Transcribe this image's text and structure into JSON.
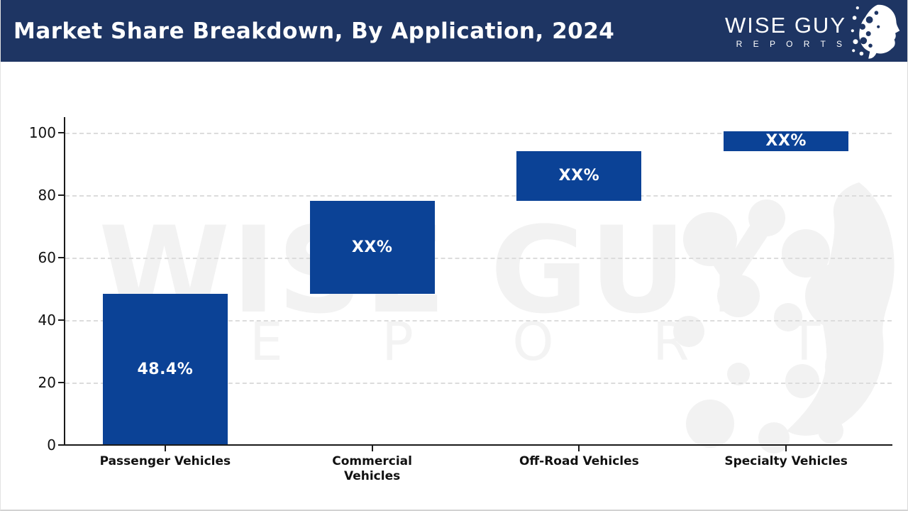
{
  "header": {
    "title": "Market Share Breakdown, By Application, 2024",
    "bg_color": "#1e3563",
    "logo": {
      "line1": "WISE GUY",
      "line2": "R E P O R T S"
    }
  },
  "watermark": {
    "line1": "WISE GUY",
    "line2": "R E P O R T S"
  },
  "chart_data": {
    "type": "bar",
    "subtype": "waterfall",
    "title": "Market Share Breakdown, By Application, 2024",
    "categories": [
      "Passenger Vehicles",
      "Commercial Vehicles",
      "Off-Road Vehicles",
      "Specialty Vehicles"
    ],
    "category_lines": [
      [
        "Passenger Vehicles"
      ],
      [
        "Commercial",
        "Vehicles"
      ],
      [
        "Off-Road Vehicles"
      ],
      [
        "Specialty Vehicles"
      ]
    ],
    "segments": [
      {
        "label": "48.4%",
        "start": 0,
        "end": 48.4
      },
      {
        "label": "XX%",
        "start": 48.4,
        "end": 78.2
      },
      {
        "label": "XX%",
        "start": 78.2,
        "end": 94.1
      },
      {
        "label": "XX%",
        "start": 94.1,
        "end": 100.5
      }
    ],
    "yticks": [
      0,
      20,
      40,
      60,
      80,
      100
    ],
    "ylim": [
      0,
      105
    ],
    "xlabel": "",
    "ylabel": "",
    "grid": true,
    "legend": false,
    "bar_color": "#0b4296",
    "bar_label_color": "#ffffff",
    "axis_color": "#1a1a1a",
    "gridline_color": "#dcdcdc"
  }
}
